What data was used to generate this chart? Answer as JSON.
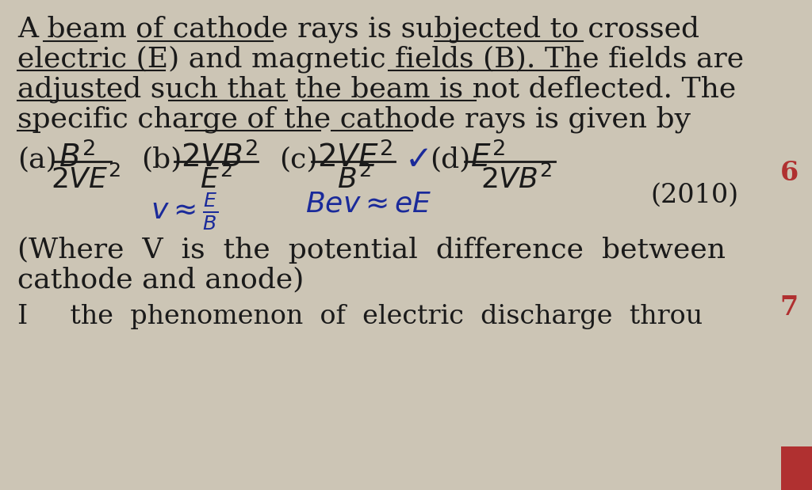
{
  "bg_color": "#ccc5b5",
  "text_color": "#1a1a1a",
  "para_lines": [
    "A beam of cathode rays is subjected to crossed",
    "electric (E) and magnetic fields (B). The fields are",
    "adjusted such that the beam is not deflected. The",
    "specific charge of the cathode rays is given by"
  ],
  "year": "(2010)",
  "footnote1": "(Where  V  is  the  potential  difference  between",
  "footnote2": "cathode and anode)",
  "bottom_line": "I     the  phenomenon  of  electric  discharge  throu",
  "right_num_top": "6",
  "right_num_bottom": "7",
  "right_bar_color": "#b03030",
  "handwritten_color": "#1a2a9a",
  "mark_color": "#1a2a9a",
  "font_size_para": 26,
  "font_size_options": 26,
  "font_size_hw": 22,
  "font_size_foot": 26
}
